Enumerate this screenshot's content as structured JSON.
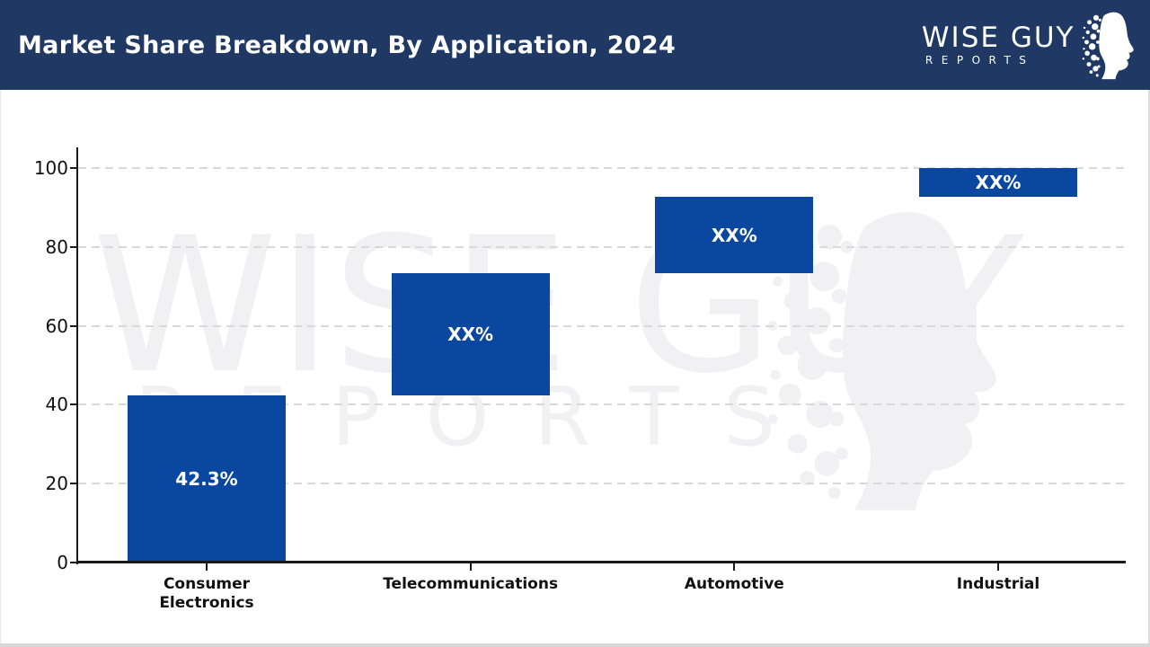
{
  "header": {
    "title": "Market Share Breakdown, By Application, 2024",
    "logo": {
      "primary": "WISE GUY",
      "secondary": "REPORTS"
    }
  },
  "watermark": {
    "line1": "WISE GUY",
    "line2": "REPORTS"
  },
  "chart_data": {
    "type": "bar",
    "variant": "waterfall",
    "title": "Market Share Breakdown, By Application, 2024",
    "categories": [
      "Consumer Electronics",
      "Telecommunications",
      "Automotive",
      "Industrial"
    ],
    "category_label_lines": [
      [
        "Consumer",
        "Electronics"
      ],
      [
        "Telecommunications"
      ],
      [
        "Automotive"
      ],
      [
        "Industrial"
      ]
    ],
    "segments": [
      {
        "category": "Consumer Electronics",
        "start": 0,
        "end": 42.3,
        "label": "42.3%"
      },
      {
        "category": "Telecommunications",
        "start": 42.3,
        "end": 73.3,
        "label": "XX%"
      },
      {
        "category": "Automotive",
        "start": 73.3,
        "end": 92.6,
        "label": "XX%"
      },
      {
        "category": "Industrial",
        "start": 92.6,
        "end": 100,
        "label": "XX%"
      }
    ],
    "xlabel": "",
    "ylabel": "",
    "ylim": [
      0,
      100
    ],
    "yticks": [
      0,
      20,
      40,
      60,
      80,
      100
    ],
    "grid": "dashed-horizontal",
    "legend": "none"
  },
  "colors": {
    "header_bg": "#1f3864",
    "bar_blue": "#0a47a1",
    "bar_label": "#ffffff",
    "grid": "#d9d9d9",
    "axis": "#1a1a1a",
    "watermark": "#f1f1f4"
  }
}
